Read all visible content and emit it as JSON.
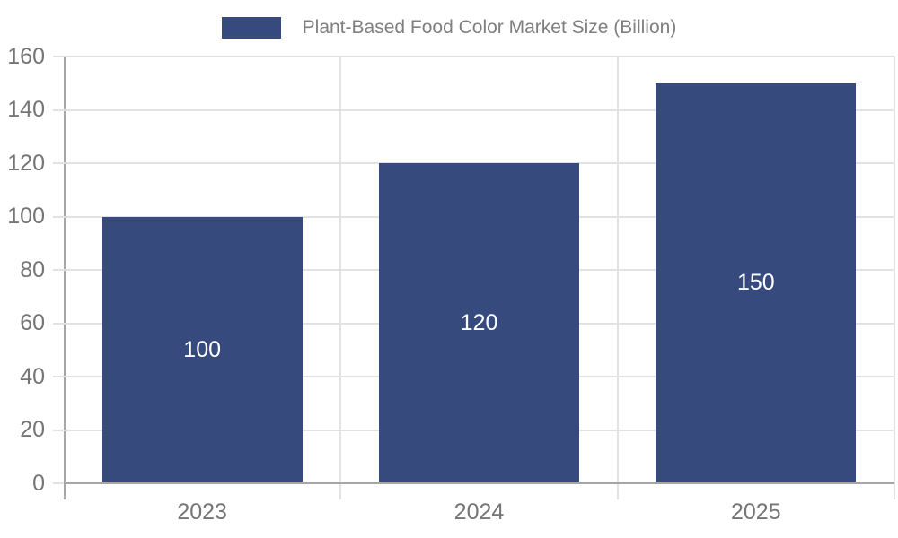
{
  "chart_data": {
    "type": "bar",
    "title": "Plant-Based Food Color Market Size (Billion)",
    "categories": [
      "2023",
      "2024",
      "2025"
    ],
    "values": [
      100,
      120,
      150
    ],
    "bar_labels": [
      "100",
      "120",
      "150"
    ],
    "xlabel": "",
    "ylabel": "",
    "ylim": [
      0,
      160
    ],
    "yticks": [
      0,
      20,
      40,
      60,
      80,
      100,
      120,
      140,
      160
    ],
    "grid": true,
    "legend_position": "top-center",
    "legend_entries": [
      "Plant-Based Food Color Market Size (Billion)"
    ],
    "colors": {
      "bar": "#364a7e",
      "gridline": "#e2e2e2",
      "axis_line": "#a6a6a6",
      "tick_label": "#757575",
      "legend_text": "#7f7f7f",
      "bar_value_label": "#ffffff",
      "background": "#ffffff"
    }
  }
}
